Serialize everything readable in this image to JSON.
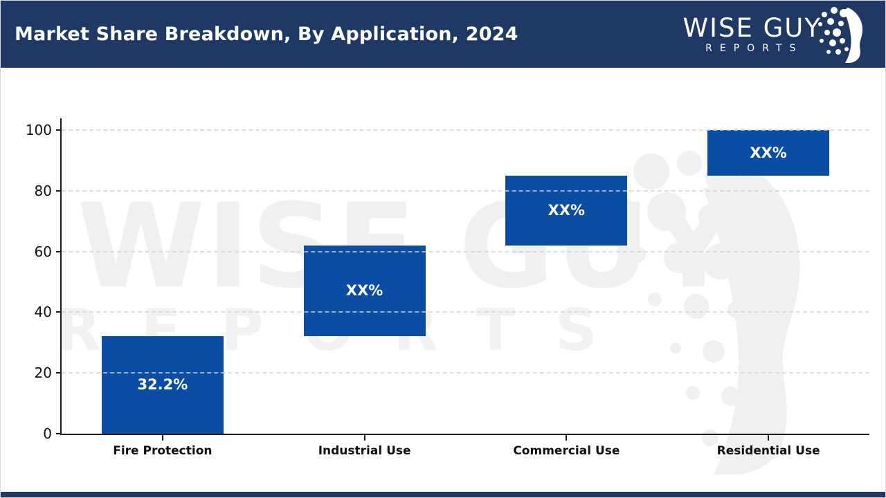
{
  "header": {
    "title": "Market Share Breakdown, By Application, 2024",
    "logo": {
      "line1": "WISE GUY",
      "line2": "REPORTS"
    }
  },
  "watermark": {
    "line1": "WISE GUY",
    "line2": "REPORTS"
  },
  "colors": {
    "header_bg": "#1f3864",
    "footer_bg": "#1f3864",
    "bar": "#0b4da2",
    "bar_label": "#ffffff",
    "gridline": "#d2d2d2",
    "axis": "#1a1a1a",
    "watermark": "#f0f0f2"
  },
  "chart_data": {
    "type": "bar",
    "subtype": "floating-waterfall",
    "title": "Market Share Breakdown, By Application, 2024",
    "categories": [
      "Fire Protection",
      "Industrial Use",
      "Commercial Use",
      "Residential Use"
    ],
    "segments": [
      {
        "category": "Fire Protection",
        "start": 0,
        "end": 32.2,
        "label": "32.2%"
      },
      {
        "category": "Industrial Use",
        "start": 32.2,
        "end": 62,
        "label": "XX%"
      },
      {
        "category": "Commercial Use",
        "start": 62,
        "end": 85,
        "label": "XX%"
      },
      {
        "category": "Residential Use",
        "start": 85,
        "end": 100,
        "label": "XX%"
      }
    ],
    "yticks": [
      0,
      20,
      40,
      60,
      80,
      100
    ],
    "ylim": [
      0,
      105
    ],
    "xlabel": "",
    "ylabel": "",
    "grid": "horizontal-dashed",
    "legend": "none"
  }
}
